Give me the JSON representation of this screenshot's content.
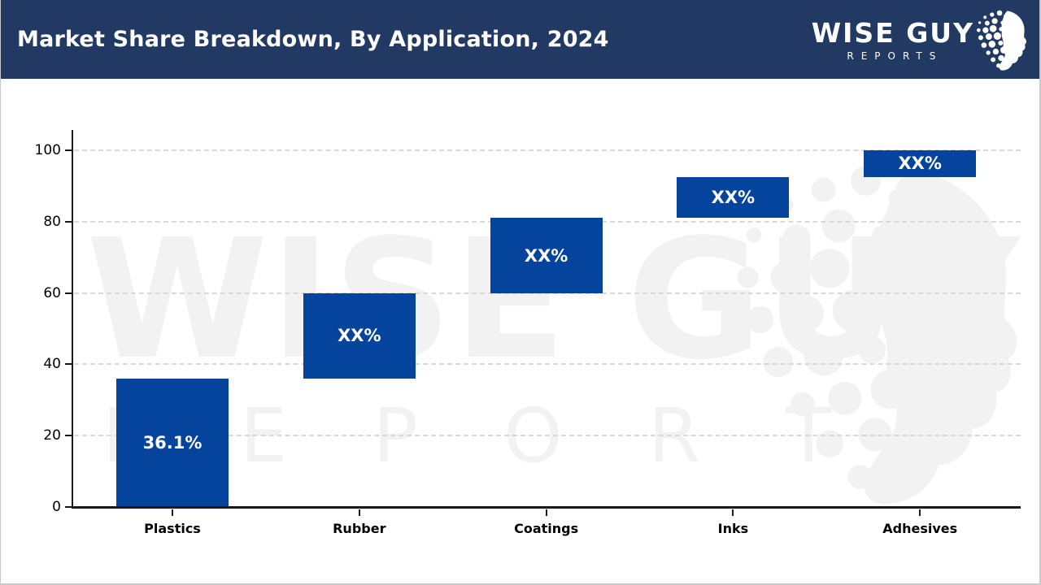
{
  "header": {
    "title": "Market Share Breakdown, By Application, 2024",
    "logo": {
      "line1": "WISE GUY",
      "line2": "REPORTS"
    }
  },
  "watermark": {
    "line1": "WISE GUY",
    "line2": "R E P O R T S"
  },
  "chart_data": {
    "type": "bar",
    "subtype": "waterfall",
    "title": "Market Share Breakdown, By Application, 2024",
    "categories": [
      "Plastics",
      "Rubber",
      "Coatings",
      "Inks",
      "Adhesives"
    ],
    "segments": [
      {
        "category": "Plastics",
        "start": 0,
        "end": 36.1,
        "value": 36.1,
        "label": "36.1%"
      },
      {
        "category": "Rubber",
        "start": 36.1,
        "end": 60,
        "value": 23.9,
        "label": "XX%"
      },
      {
        "category": "Coatings",
        "start": 60,
        "end": 81,
        "value": 21,
        "label": "XX%"
      },
      {
        "category": "Inks",
        "start": 81,
        "end": 92.5,
        "value": 11.5,
        "label": "XX%"
      },
      {
        "category": "Adhesives",
        "start": 92.5,
        "end": 100,
        "value": 7.5,
        "label": "XX%"
      }
    ],
    "yticks": [
      0,
      20,
      40,
      60,
      80,
      100
    ],
    "ylim": [
      0,
      105
    ],
    "xlabel": "",
    "ylabel": "",
    "grid": "horizontal-dashed",
    "legend": "none",
    "bar_color": "#04449c",
    "bar_label_color": "#ffffff"
  },
  "colors": {
    "header_bg": "#223a63",
    "bar": "#04449c",
    "grid": "#d9d9d9",
    "axis": "#1a1a1a",
    "watermark": "#f2f2f2",
    "frame_border": "#c9c9c9",
    "title_text": "#ffffff"
  }
}
